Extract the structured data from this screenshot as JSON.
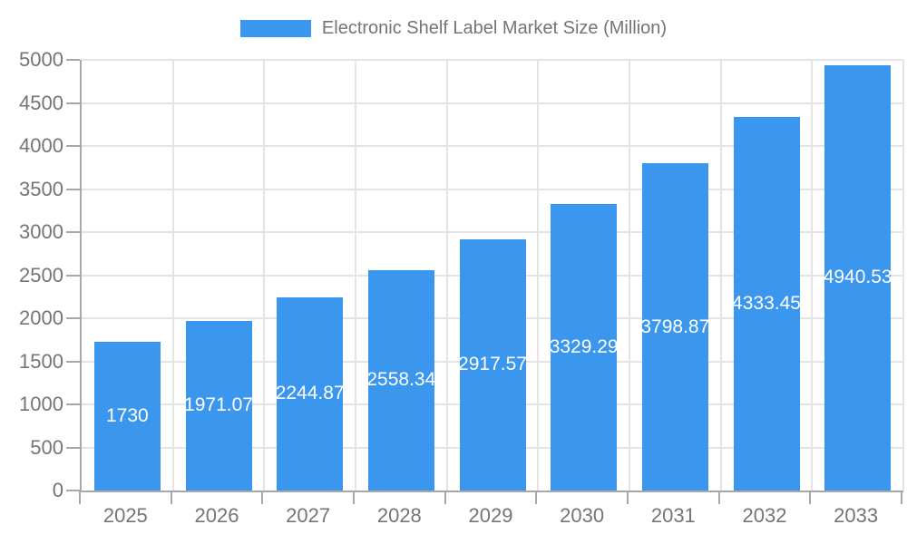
{
  "legend": {
    "label": "Electronic Shelf Label Market Size (Million)",
    "swatch_color": "#3b97ee"
  },
  "chart_data": {
    "type": "bar",
    "title": "Electronic Shelf Label Market Size (Million)",
    "categories": [
      "2025",
      "2026",
      "2027",
      "2028",
      "2029",
      "2030",
      "2031",
      "2032",
      "2033"
    ],
    "series": [
      {
        "name": "Electronic Shelf Label Market Size (Million)",
        "values": [
          1730,
          1971.07,
          2244.87,
          2558.34,
          2917.57,
          3329.29,
          3798.87,
          4333.45,
          4940.53
        ]
      }
    ],
    "value_labels": [
      "1730",
      "1971.07",
      "2244.87",
      "2558.34",
      "2917.57",
      "3329.29",
      "3798.87",
      "4333.45",
      "4940.53"
    ],
    "xlabel": "",
    "ylabel": "",
    "ylim": [
      0,
      5000
    ],
    "yticks": [
      0,
      500,
      1000,
      1500,
      2000,
      2500,
      3000,
      3500,
      4000,
      4500,
      5000
    ],
    "grid": true,
    "legend_position": "top-center",
    "colors": {
      "bar": "#3b97ee",
      "grid": "#e4e4e4",
      "axis": "#a8a8a8",
      "tick_text": "#757575",
      "value_text": "#ffffff"
    }
  }
}
